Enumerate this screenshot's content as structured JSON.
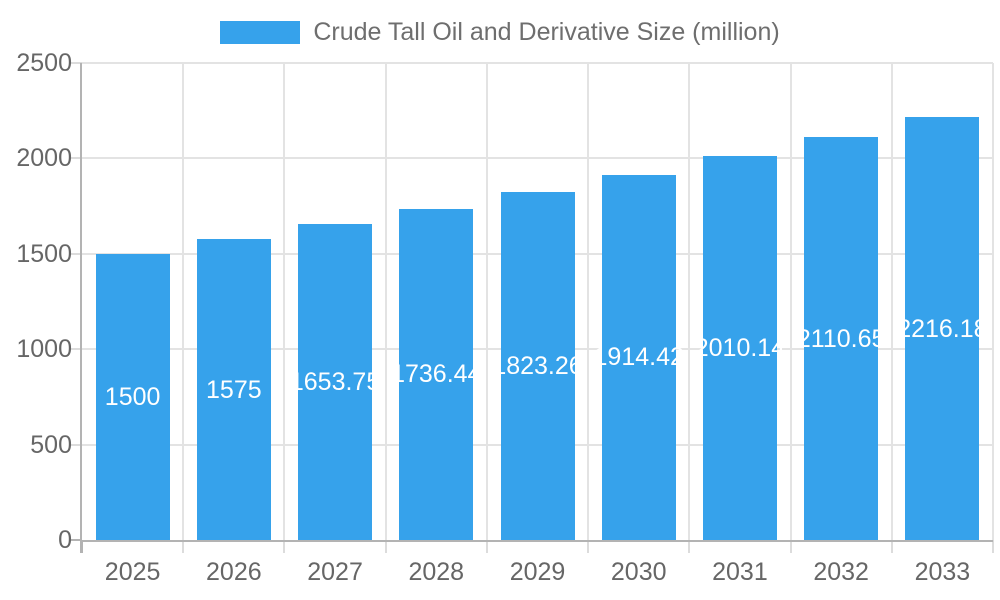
{
  "chart_data": {
    "type": "bar",
    "title": "Crude Tall Oil and Derivative Size (million)",
    "series_name": "Crude Tall Oil and Derivative Size (million)",
    "categories": [
      "2025",
      "2026",
      "2027",
      "2028",
      "2029",
      "2030",
      "2031",
      "2032",
      "2033"
    ],
    "values": [
      1500,
      1575,
      1653.75,
      1736.44,
      1823.26,
      1914.42,
      2010.14,
      2110.65,
      2216.18
    ],
    "ylim": [
      0,
      2500
    ],
    "yticks": [
      0,
      500,
      1000,
      1500,
      2000,
      2500
    ],
    "grid": true,
    "legend_position": "top",
    "value_label_position": "inside-center"
  },
  "colors": {
    "bar": "#36A2EB",
    "grid": "#e3e3e3",
    "tick": "#dcdcdc",
    "axis": "#b3b3b3",
    "text": "#666666",
    "value_label": "#ffffff"
  }
}
